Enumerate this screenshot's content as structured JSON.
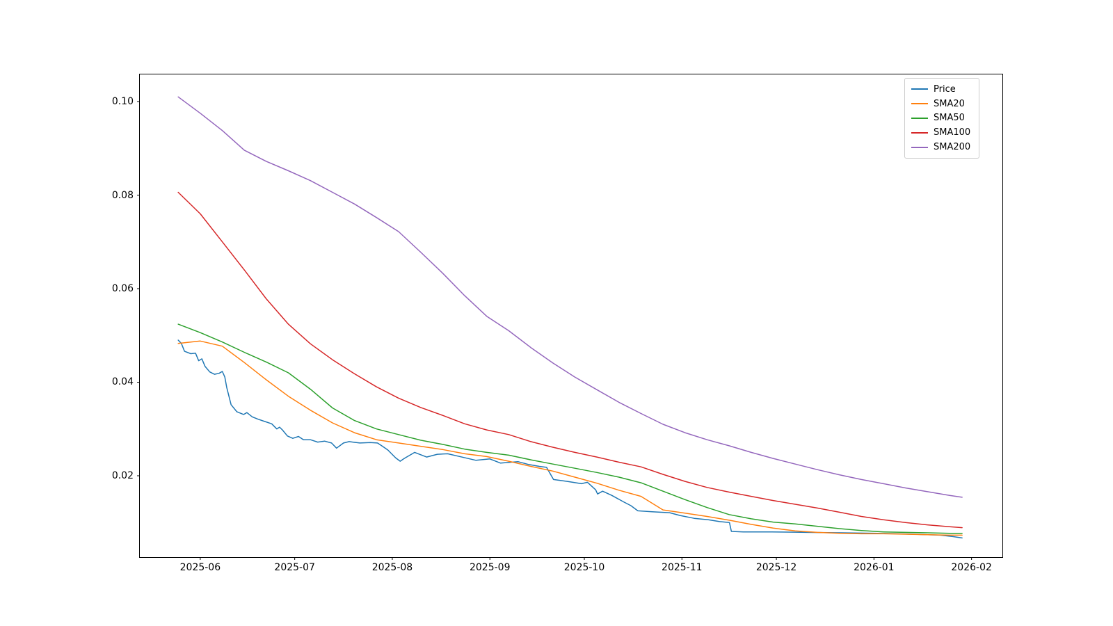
{
  "chart_data": {
    "type": "line",
    "title": "",
    "xlabel": "",
    "ylabel": "",
    "grid": false,
    "start_date": "2025-05-25",
    "x_unit": "days_since_start_date",
    "xlim_days": [
      -12.2,
      261.8
    ],
    "ylim": [
      0.0026,
      0.1058
    ],
    "y_ticks": [
      0.02,
      0.04,
      0.06,
      0.08,
      0.1
    ],
    "y_tick_labels": [
      "0.02",
      "0.04",
      "0.06",
      "0.08",
      "0.10"
    ],
    "x_tick_days": [
      7,
      37,
      68,
      99,
      129,
      160,
      190,
      221,
      252
    ],
    "x_tick_labels": [
      "2025-06",
      "2025-07",
      "2025-08",
      "2025-09",
      "2025-10",
      "2025-11",
      "2025-12",
      "2026-01",
      "2026-02"
    ],
    "legend_position": "upper right",
    "series": [
      {
        "name": "Price",
        "color": "#1f77b4",
        "points": [
          [
            0,
            0.049
          ],
          [
            1,
            0.0483
          ],
          [
            2,
            0.0466
          ],
          [
            4,
            0.0461
          ],
          [
            5.5,
            0.0462
          ],
          [
            6.5,
            0.0446
          ],
          [
            7.5,
            0.045
          ],
          [
            8.5,
            0.0434
          ],
          [
            10,
            0.0422
          ],
          [
            11.5,
            0.0417
          ],
          [
            13,
            0.0419
          ],
          [
            14,
            0.0423
          ],
          [
            14.8,
            0.0411
          ],
          [
            15.4,
            0.0389
          ],
          [
            16.8,
            0.0352
          ],
          [
            18.6,
            0.0337
          ],
          [
            20.8,
            0.0331
          ],
          [
            21.8,
            0.0335
          ],
          [
            23.5,
            0.0326
          ],
          [
            25.3,
            0.0321
          ],
          [
            27.5,
            0.0316
          ],
          [
            29.7,
            0.0311
          ],
          [
            31.3,
            0.03
          ],
          [
            32.2,
            0.0304
          ],
          [
            33.1,
            0.0298
          ],
          [
            34.7,
            0.0285
          ],
          [
            36.4,
            0.028
          ],
          [
            38.2,
            0.0284
          ],
          [
            39.8,
            0.0277
          ],
          [
            42,
            0.0277
          ],
          [
            44.3,
            0.0272
          ],
          [
            46.5,
            0.0274
          ],
          [
            48.7,
            0.027
          ],
          [
            50.3,
            0.0259
          ],
          [
            52.5,
            0.027
          ],
          [
            54.3,
            0.0273
          ],
          [
            57.7,
            0.027
          ],
          [
            61,
            0.0271
          ],
          [
            63.3,
            0.027
          ],
          [
            65.1,
            0.0262
          ],
          [
            66.6,
            0.0255
          ],
          [
            68.2,
            0.0244
          ],
          [
            69.1,
            0.0238
          ],
          [
            70.5,
            0.0231
          ],
          [
            71.8,
            0.0237
          ],
          [
            75.1,
            0.025
          ],
          [
            78.9,
            0.024
          ],
          [
            82.3,
            0.0246
          ],
          [
            85.6,
            0.0247
          ],
          [
            90.8,
            0.0239
          ],
          [
            94.6,
            0.0233
          ],
          [
            99,
            0.0236
          ],
          [
            102.4,
            0.0227
          ],
          [
            108,
            0.023
          ],
          [
            111.3,
            0.0224
          ],
          [
            114.7,
            0.022
          ],
          [
            117,
            0.0218
          ],
          [
            119.2,
            0.0192
          ],
          [
            123.6,
            0.0188
          ],
          [
            128.1,
            0.0183
          ],
          [
            130,
            0.0186
          ],
          [
            132.6,
            0.017
          ],
          [
            133.2,
            0.0161
          ],
          [
            134.8,
            0.0167
          ],
          [
            137.7,
            0.0158
          ],
          [
            141.5,
            0.0144
          ],
          [
            143.8,
            0.0136
          ],
          [
            146,
            0.0125
          ],
          [
            150.5,
            0.0123
          ],
          [
            156.1,
            0.0121
          ],
          [
            159.4,
            0.0115
          ],
          [
            163.9,
            0.0109
          ],
          [
            168.4,
            0.0106
          ],
          [
            172,
            0.0102
          ],
          [
            175.1,
            0.01
          ],
          [
            175.7,
            0.0081
          ],
          [
            179.5,
            0.008
          ],
          [
            188.5,
            0.008
          ],
          [
            199.6,
            0.0079
          ],
          [
            210.8,
            0.0078
          ],
          [
            222,
            0.0077
          ],
          [
            233.2,
            0.0075
          ],
          [
            242.1,
            0.0073
          ],
          [
            246,
            0.007
          ],
          [
            249,
            0.0067
          ]
        ]
      },
      {
        "name": "SMA20",
        "color": "#ff7f0e",
        "points": [
          [
            0,
            0.0483
          ],
          [
            7,
            0.0488
          ],
          [
            14,
            0.0477
          ],
          [
            21,
            0.0442
          ],
          [
            28,
            0.0405
          ],
          [
            35,
            0.037
          ],
          [
            42,
            0.034
          ],
          [
            49,
            0.0313
          ],
          [
            56,
            0.0292
          ],
          [
            63,
            0.0277
          ],
          [
            70,
            0.027
          ],
          [
            77,
            0.0263
          ],
          [
            84,
            0.0256
          ],
          [
            91,
            0.0247
          ],
          [
            98,
            0.0241
          ],
          [
            105,
            0.0231
          ],
          [
            112,
            0.022
          ],
          [
            119,
            0.021
          ],
          [
            126,
            0.0197
          ],
          [
            133,
            0.0184
          ],
          [
            140,
            0.0169
          ],
          [
            147,
            0.0156
          ],
          [
            154,
            0.0127
          ],
          [
            161,
            0.012
          ],
          [
            168,
            0.0113
          ],
          [
            175,
            0.0105
          ],
          [
            182,
            0.0096
          ],
          [
            189,
            0.0088
          ],
          [
            196,
            0.0082
          ],
          [
            203,
            0.0079
          ],
          [
            210,
            0.0077
          ],
          [
            217,
            0.0076
          ],
          [
            224,
            0.0076
          ],
          [
            231,
            0.0075
          ],
          [
            238,
            0.0074
          ],
          [
            245,
            0.0073
          ],
          [
            249,
            0.0073
          ]
        ]
      },
      {
        "name": "SMA50",
        "color": "#2ca02c",
        "points": [
          [
            0,
            0.0524
          ],
          [
            7,
            0.0506
          ],
          [
            14,
            0.0486
          ],
          [
            21,
            0.0464
          ],
          [
            28,
            0.0443
          ],
          [
            35,
            0.042
          ],
          [
            42,
            0.0385
          ],
          [
            49,
            0.0345
          ],
          [
            56,
            0.0318
          ],
          [
            63,
            0.03
          ],
          [
            70,
            0.0288
          ],
          [
            77,
            0.0276
          ],
          [
            84,
            0.0267
          ],
          [
            91,
            0.0257
          ],
          [
            98,
            0.025
          ],
          [
            105,
            0.0244
          ],
          [
            112,
            0.0234
          ],
          [
            119,
            0.0225
          ],
          [
            126,
            0.0216
          ],
          [
            133,
            0.0207
          ],
          [
            140,
            0.0197
          ],
          [
            147,
            0.0185
          ],
          [
            154,
            0.0167
          ],
          [
            161,
            0.0149
          ],
          [
            168,
            0.0132
          ],
          [
            175,
            0.0117
          ],
          [
            182,
            0.0108
          ],
          [
            189,
            0.0101
          ],
          [
            196,
            0.0097
          ],
          [
            203,
            0.0092
          ],
          [
            210,
            0.0087
          ],
          [
            217,
            0.0083
          ],
          [
            224,
            0.008
          ],
          [
            231,
            0.0079
          ],
          [
            238,
            0.0078
          ],
          [
            245,
            0.0077
          ],
          [
            249,
            0.0077
          ]
        ]
      },
      {
        "name": "SMA100",
        "color": "#d62728",
        "points": [
          [
            0,
            0.0806
          ],
          [
            7,
            0.076
          ],
          [
            14,
            0.07
          ],
          [
            21,
            0.064
          ],
          [
            28,
            0.0578
          ],
          [
            35,
            0.0524
          ],
          [
            42,
            0.0482
          ],
          [
            49,
            0.0448
          ],
          [
            56,
            0.0418
          ],
          [
            63,
            0.039
          ],
          [
            70,
            0.0366
          ],
          [
            77,
            0.0346
          ],
          [
            84,
            0.0329
          ],
          [
            91,
            0.0311
          ],
          [
            98,
            0.0298
          ],
          [
            105,
            0.0288
          ],
          [
            112,
            0.0273
          ],
          [
            119,
            0.0261
          ],
          [
            126,
            0.025
          ],
          [
            133,
            0.024
          ],
          [
            140,
            0.0229
          ],
          [
            147,
            0.0219
          ],
          [
            154,
            0.0203
          ],
          [
            161,
            0.0188
          ],
          [
            168,
            0.0175
          ],
          [
            175,
            0.0165
          ],
          [
            182,
            0.0156
          ],
          [
            189,
            0.0147
          ],
          [
            196,
            0.0139
          ],
          [
            203,
            0.0131
          ],
          [
            210,
            0.0122
          ],
          [
            217,
            0.0113
          ],
          [
            224,
            0.0106
          ],
          [
            231,
            0.01
          ],
          [
            238,
            0.0095
          ],
          [
            245,
            0.0091
          ],
          [
            249,
            0.0089
          ]
        ]
      },
      {
        "name": "SMA200",
        "color": "#9467bd",
        "points": [
          [
            0,
            0.101
          ],
          [
            7,
            0.0975
          ],
          [
            14,
            0.0938
          ],
          [
            21,
            0.0896
          ],
          [
            28,
            0.0872
          ],
          [
            35,
            0.0852
          ],
          [
            42,
            0.0831
          ],
          [
            49,
            0.0806
          ],
          [
            56,
            0.0781
          ],
          [
            63,
            0.0752
          ],
          [
            70,
            0.0722
          ],
          [
            77,
            0.0678
          ],
          [
            84,
            0.0633
          ],
          [
            91,
            0.0585
          ],
          [
            98,
            0.0541
          ],
          [
            105,
            0.051
          ],
          [
            112,
            0.0474
          ],
          [
            119,
            0.0441
          ],
          [
            126,
            0.0411
          ],
          [
            133,
            0.0384
          ],
          [
            140,
            0.0357
          ],
          [
            147,
            0.0333
          ],
          [
            154,
            0.031
          ],
          [
            161,
            0.0292
          ],
          [
            168,
            0.0277
          ],
          [
            175,
            0.0264
          ],
          [
            182,
            0.025
          ],
          [
            189,
            0.0237
          ],
          [
            196,
            0.0225
          ],
          [
            203,
            0.0213
          ],
          [
            210,
            0.0202
          ],
          [
            217,
            0.0192
          ],
          [
            224,
            0.0183
          ],
          [
            231,
            0.0174
          ],
          [
            238,
            0.0166
          ],
          [
            245,
            0.0158
          ],
          [
            249,
            0.0154
          ]
        ]
      }
    ]
  }
}
